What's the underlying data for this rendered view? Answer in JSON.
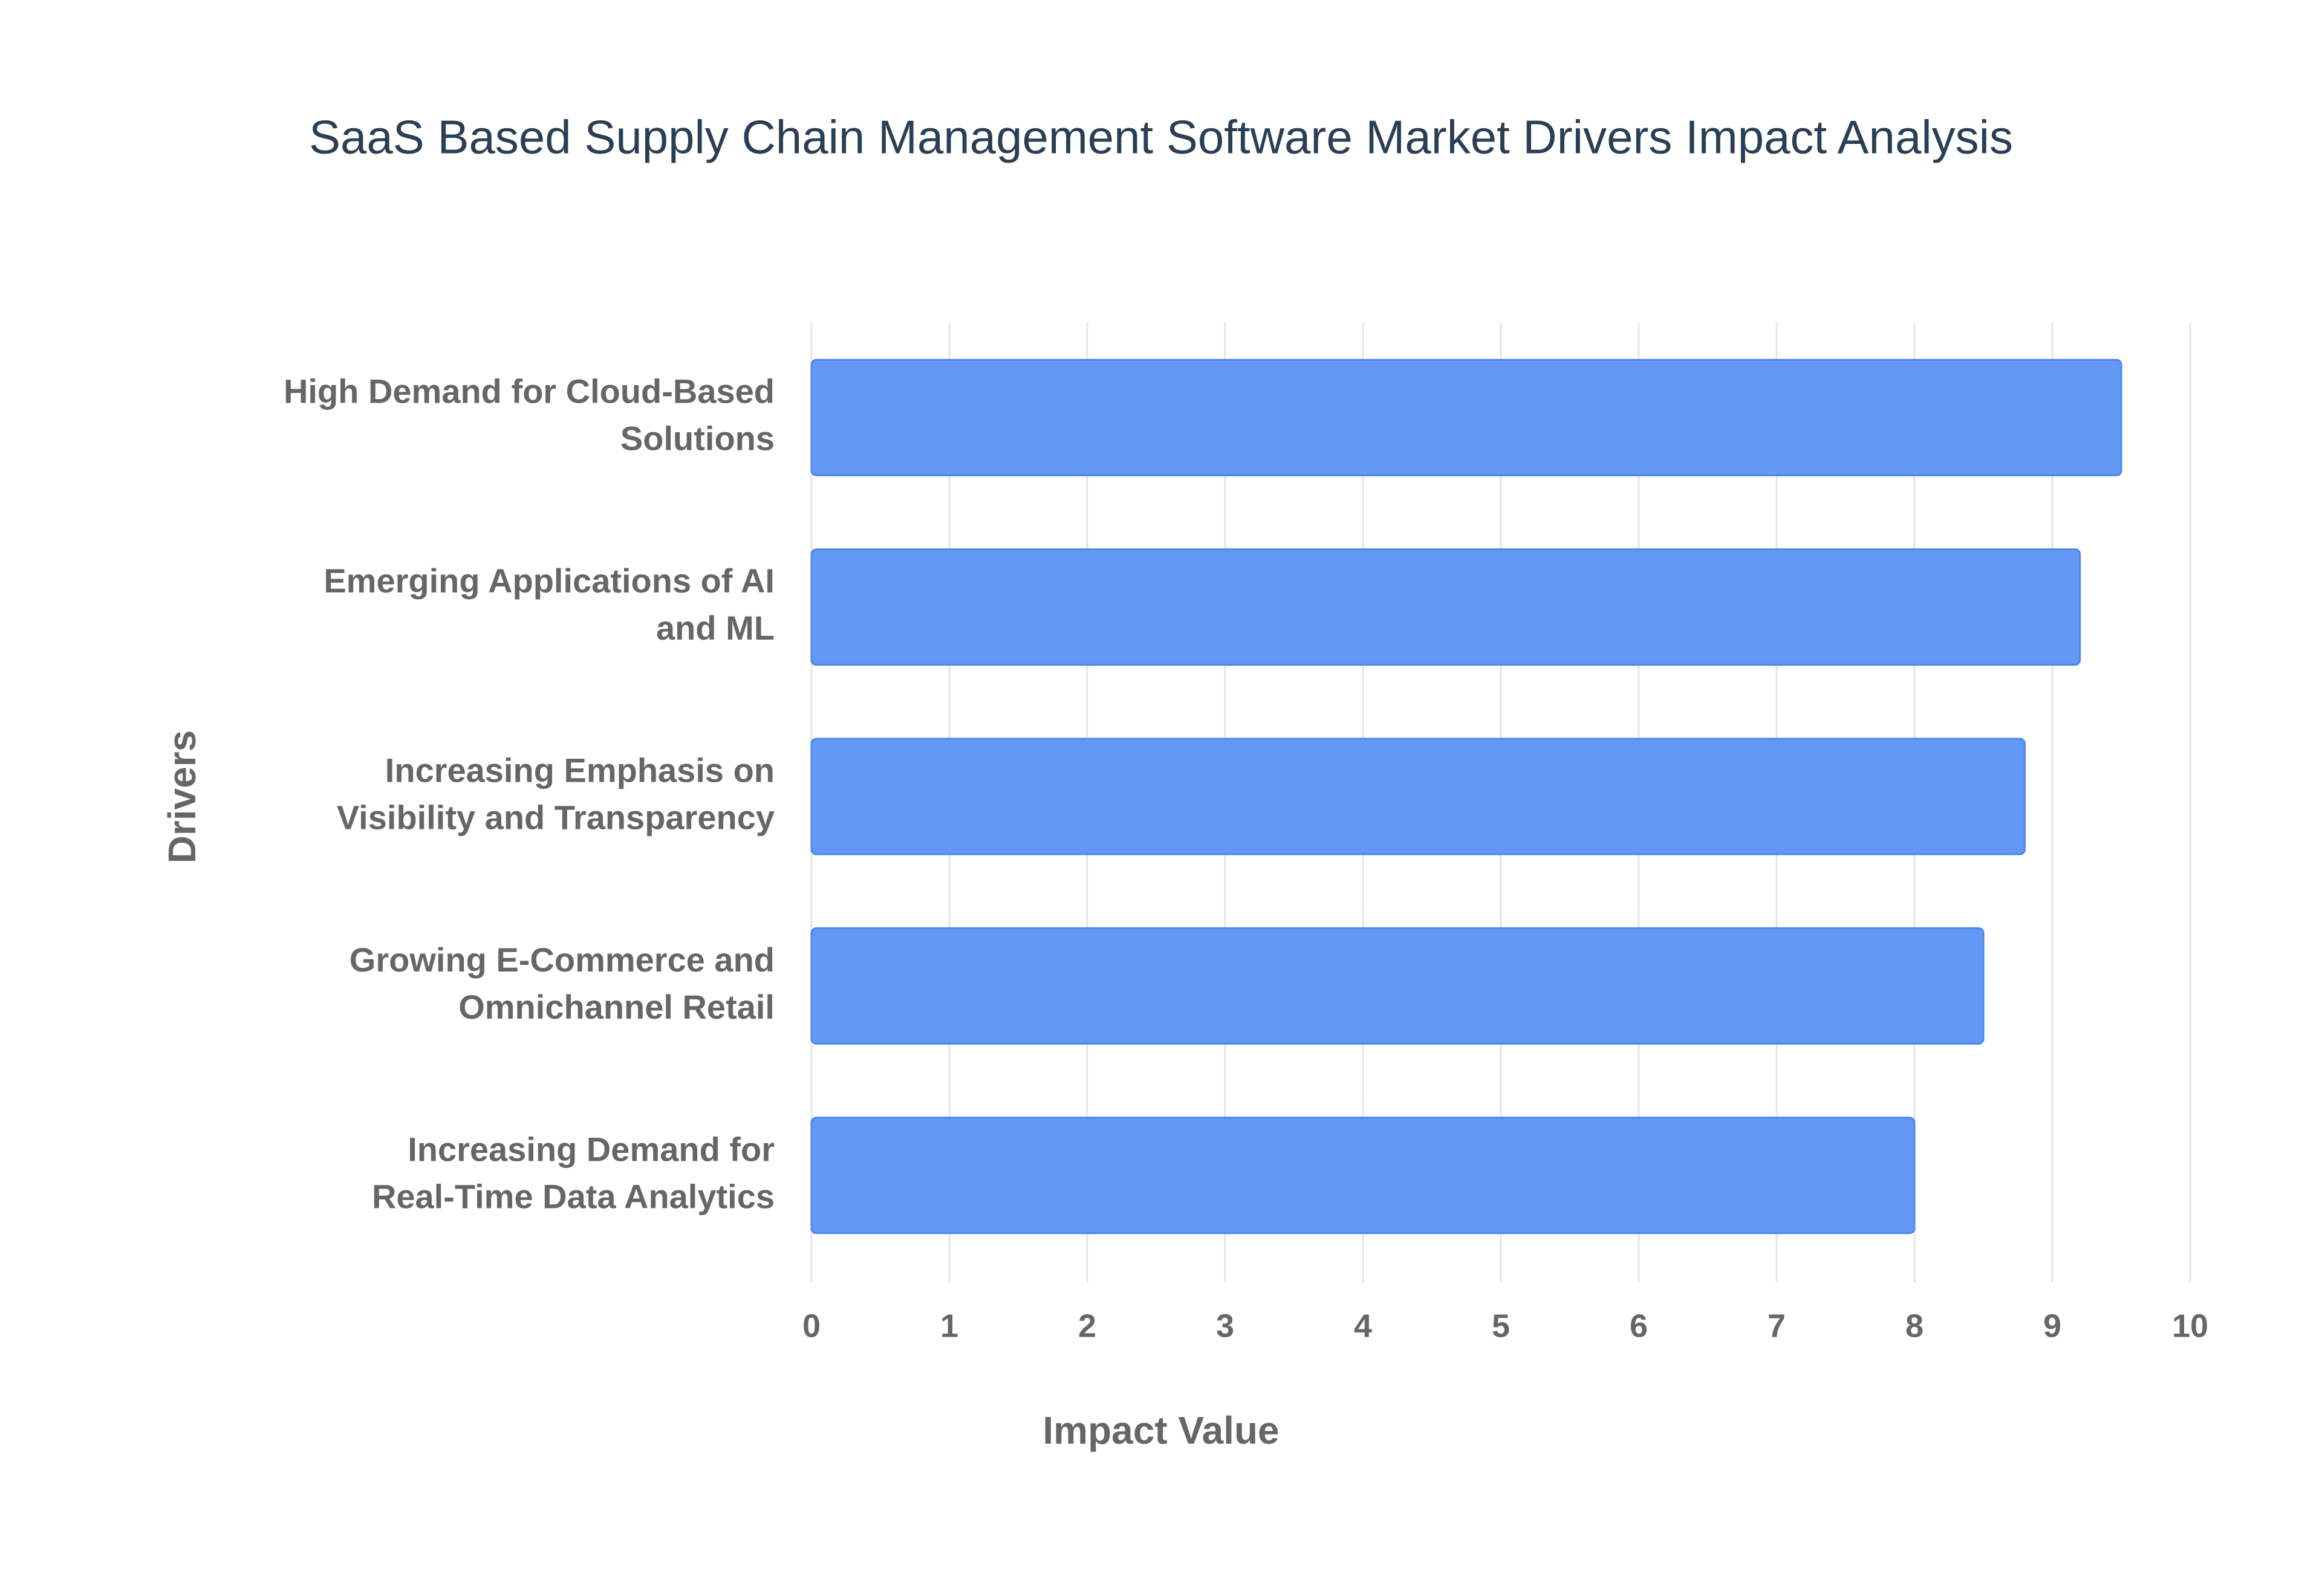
{
  "chart_data": {
    "type": "barh",
    "title": "SaaS Based Supply Chain Management Software Market Drivers Impact Analysis",
    "x_label": "Impact Value",
    "y_label": "Drivers",
    "categories": [
      "High Demand for Cloud-Based Solutions",
      "Emerging Applications of AI and ML",
      "Increasing Emphasis on Visibility and Transparency",
      "Growing E-Commerce and Omnichannel Retail",
      "Increasing Demand for Real-Time Data Analytics"
    ],
    "values": [
      9.5,
      9.2,
      8.8,
      8.5,
      8.0
    ],
    "color": "#6399f5",
    "xlim": [
      0,
      10
    ],
    "xticks": [
      0,
      1,
      2,
      3,
      4,
      5,
      6,
      7,
      8,
      9,
      10
    ],
    "grid": true
  }
}
